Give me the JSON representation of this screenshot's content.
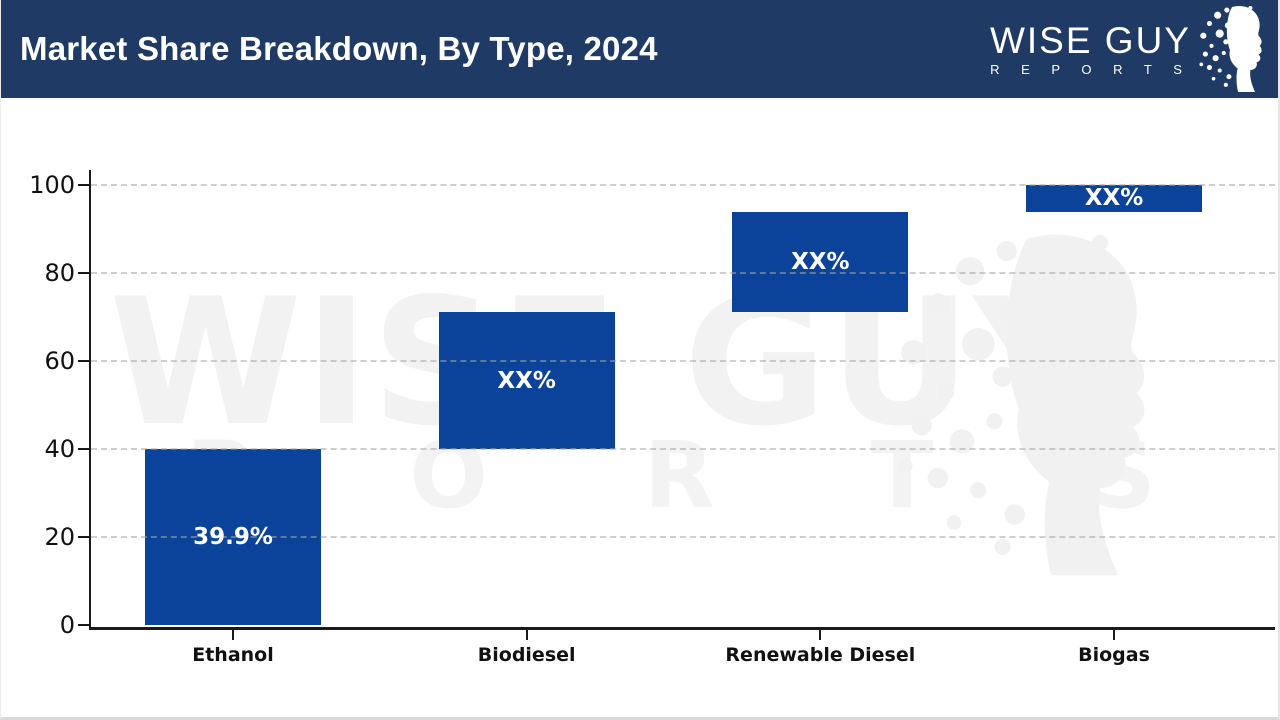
{
  "header": {
    "title": "Market Share Breakdown, By Type, 2024",
    "logo": {
      "name": "WISE GUY",
      "tagline": "R E P O R T S",
      "icon": "dotted-head-profile"
    }
  },
  "watermark": {
    "line1": "WISE GUY",
    "line2": "P O R T S",
    "icon": "dotted-head-profile"
  },
  "chart_data": {
    "type": "bar",
    "subtype": "waterfall",
    "title": "Market Share Breakdown, By Type, 2024",
    "categories": [
      "Ethanol",
      "Biodiesel",
      "Renewable Diesel",
      "Biogas"
    ],
    "segments": [
      {
        "category": "Ethanol",
        "start": 0,
        "end": 39.9,
        "value_label": "39.9%"
      },
      {
        "category": "Biodiesel",
        "start": 39.9,
        "end": 71.2,
        "value_label": "XX%"
      },
      {
        "category": "Renewable Diesel",
        "start": 71.2,
        "end": 93.9,
        "value_label": "XX%"
      },
      {
        "category": "Biogas",
        "start": 93.9,
        "end": 100,
        "value_label": "XX%"
      }
    ],
    "xlabel": "",
    "ylabel": "",
    "yticks": [
      0,
      20,
      40,
      60,
      80,
      100
    ],
    "ylim": [
      0,
      104
    ],
    "grid": "horizontal-dashed-over-bars",
    "legend": "none",
    "colors": {
      "bar": "#0b439a",
      "bar_label_text": "#ffffff",
      "header_background": "#1f3a64",
      "header_text": "#ffffff",
      "gridline": "#c8c8c8",
      "axis": "#1a1a1a",
      "tick_text": "#111111",
      "watermark": "#f2f2f2"
    }
  }
}
